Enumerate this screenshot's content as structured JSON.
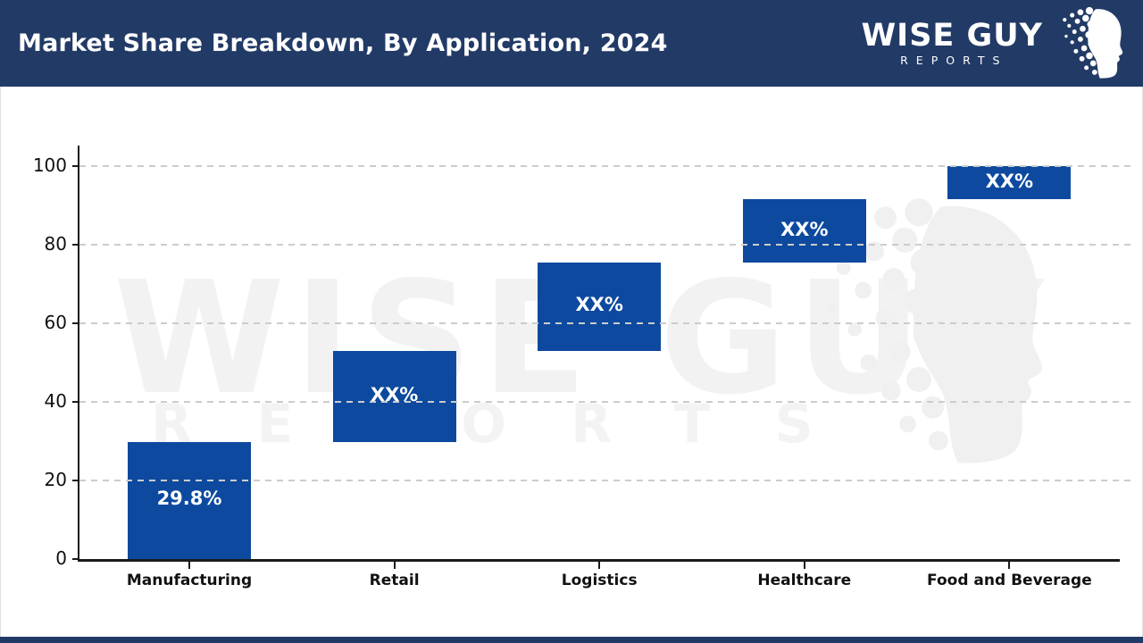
{
  "header": {
    "title": "Market Share Breakdown, By Application, 2024",
    "bg_color": "#223a66"
  },
  "logo": {
    "line1": "WISE GUY",
    "line2": "REPORTS"
  },
  "watermark": {
    "line1": "WISE GUY",
    "line2": "REPORTS"
  },
  "chart_data": {
    "type": "bar",
    "subtype": "floating-waterfall",
    "title": "Market Share Breakdown, By Application, 2024",
    "categories": [
      "Manufacturing",
      "Retail",
      "Logistics",
      "Healthcare",
      "Food and Beverage"
    ],
    "bars": [
      {
        "category": "Manufacturing",
        "start": 0,
        "end": 29.8,
        "label": "29.8%"
      },
      {
        "category": "Retail",
        "start": 29.8,
        "end": 53.0,
        "label": "XX%"
      },
      {
        "category": "Logistics",
        "start": 53.0,
        "end": 75.5,
        "label": "XX%"
      },
      {
        "category": "Healthcare",
        "start": 75.5,
        "end": 91.5,
        "label": "XX%"
      },
      {
        "category": "Food and Beverage",
        "start": 91.5,
        "end": 100.0,
        "label": "XX%"
      }
    ],
    "yticks": [
      0,
      20,
      40,
      60,
      80,
      100
    ],
    "ylim": [
      0,
      105
    ],
    "xlabel": "",
    "ylabel": "",
    "grid": "horizontal-dashed",
    "legend": "none",
    "bar_color": "#0d4a9f",
    "bar_label_color": "#ffffff",
    "axis_color": "#1a1a1a",
    "grid_color": "#cccccc"
  }
}
